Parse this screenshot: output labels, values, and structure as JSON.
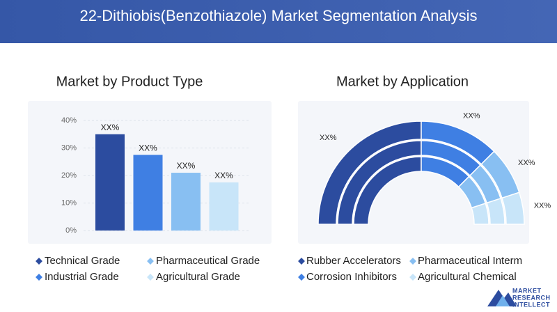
{
  "header": {
    "title": "22-Dithiobis(Benzothiazole) Market Segmentation Analysis"
  },
  "chart_data": [
    {
      "type": "bar",
      "title": "Market by Product Type",
      "categories": [
        "Technical Grade",
        "Industrial Grade",
        "Pharmaceutical Grade",
        "Agricultural Grade"
      ],
      "values": [
        35,
        27.5,
        21,
        17.5
      ],
      "value_labels": [
        "XX%",
        "XX%",
        "XX%",
        "XX%"
      ],
      "colors": [
        "#2c4c9f",
        "#3f7fe3",
        "#88bff2",
        "#c8e5f9"
      ],
      "ylim": [
        0,
        40
      ],
      "yticks": [
        {
          "value": 0,
          "label": "0%"
        },
        {
          "value": 10,
          "label": "10%"
        },
        {
          "value": 20,
          "label": "20%"
        },
        {
          "value": 30,
          "label": "30%"
        },
        {
          "value": 40,
          "label": "40%"
        }
      ],
      "grid": true
    },
    {
      "type": "pie",
      "title": "Market by Application",
      "categories": [
        "Rubber Accelerators",
        "Corrosion Inhibitors",
        "Pharmaceutical Interm",
        "Agricultural Chemical"
      ],
      "values": [
        50,
        25,
        15,
        10
      ],
      "value_labels": [
        "XX%",
        "XX%",
        "XX%",
        "XX%"
      ],
      "colors": [
        "#2c4c9f",
        "#3f7fe3",
        "#88bff2",
        "#c8e5f9"
      ]
    }
  ],
  "logo": {
    "lines": [
      "MARKET",
      "RESEARCH",
      "INTELLECT"
    ]
  }
}
